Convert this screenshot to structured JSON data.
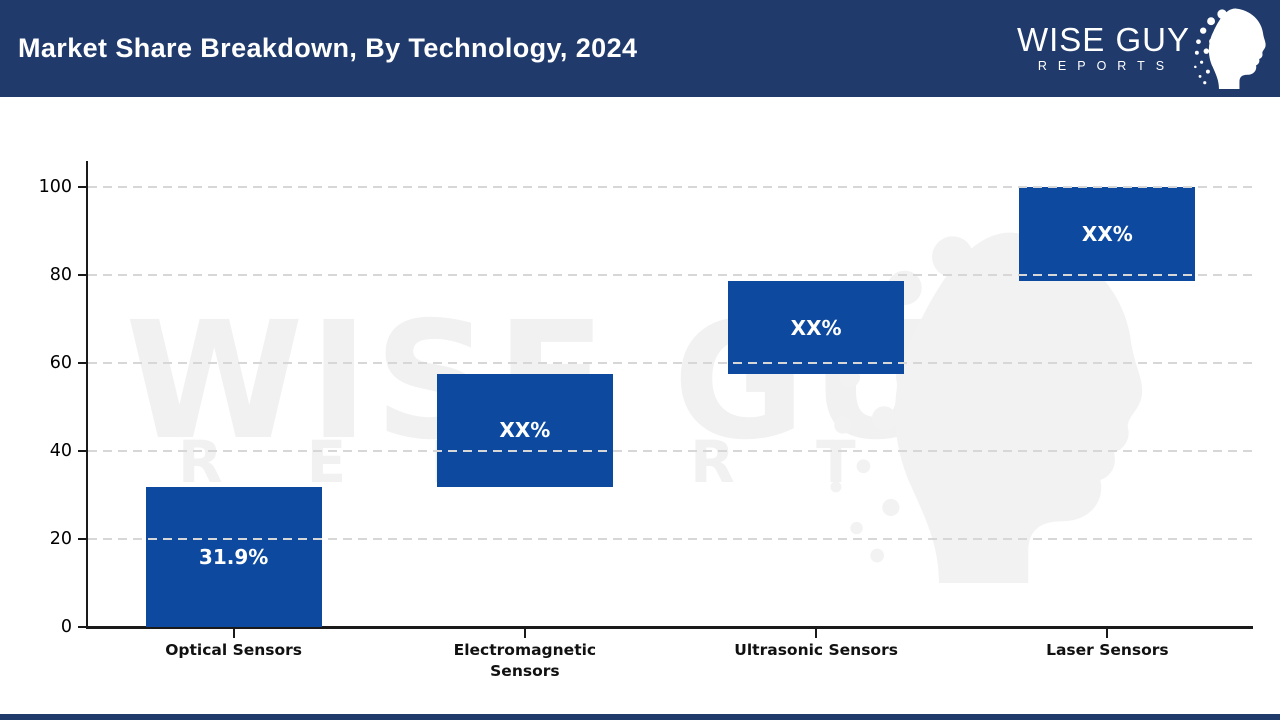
{
  "header": {
    "title": "Market Share Breakdown, By Technology, 2024",
    "logo": {
      "line1": "WISE GUY",
      "line2": "REPORTS"
    }
  },
  "watermark": {
    "line1": "WISE GUY",
    "line2": "REPORTS"
  },
  "chart_data": {
    "type": "bar",
    "subtype": "waterfall",
    "title": "Market Share Breakdown, By Technology, 2024",
    "xlabel": "",
    "ylabel": "",
    "categories": [
      "Optical Sensors",
      "Electromagnetic Sensors",
      "Ultrasonic Sensors",
      "Laser Sensors"
    ],
    "segments": [
      {
        "category": "Optical Sensors",
        "label": "31.9%",
        "start": 0,
        "end": 31.9
      },
      {
        "category": "Electromagnetic Sensors",
        "label": "XX%",
        "start": 31.9,
        "end": 57.5
      },
      {
        "category": "Ultrasonic Sensors",
        "label": "XX%",
        "start": 57.5,
        "end": 78.6
      },
      {
        "category": "Laser Sensors",
        "label": "XX%",
        "start": 78.6,
        "end": 100
      }
    ],
    "yticks": [
      0,
      20,
      40,
      60,
      80,
      100
    ],
    "ytick_labels": [
      "0",
      "20",
      "40",
      "60",
      "80",
      "100"
    ],
    "ylim": [
      0,
      106
    ],
    "grid": true,
    "legend": false,
    "bar_color": "#0d4a9f",
    "gridline_color": "#d7d7d7",
    "label_color": "#ffffff"
  },
  "colors": {
    "header_bg": "#1f3a6b",
    "footer_bg": "#1f3a6b",
    "bar": "#0d4a9f",
    "axis": "#1a1a1a",
    "watermark": "#f1f1f1"
  }
}
